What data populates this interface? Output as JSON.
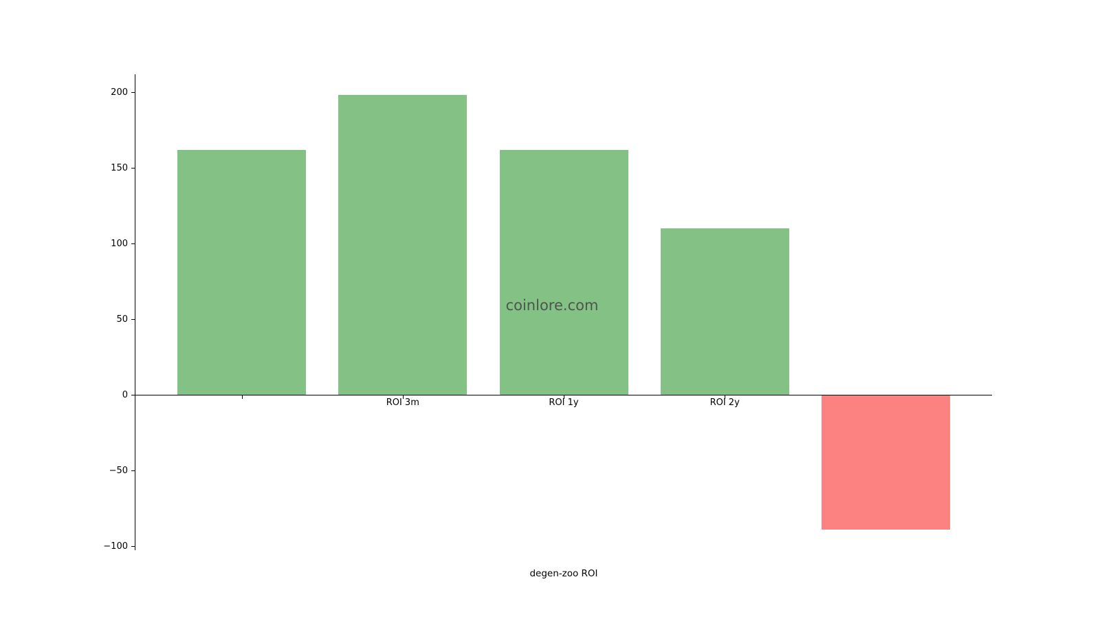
{
  "watermark_text": "coinlore.com",
  "chart_data": {
    "type": "bar",
    "title": "",
    "xlabel": "degen-zoo ROI",
    "ylabel": "",
    "categories": [
      "",
      "ROI 3m",
      "ROI 1y",
      "ROI 2y",
      ""
    ],
    "values": [
      162,
      198,
      162,
      110,
      -89
    ],
    "y_ticks": [
      200,
      150,
      100,
      50,
      0,
      -50,
      -100
    ],
    "ylim": [
      -102.5,
      212
    ],
    "grid": false,
    "legend": null,
    "colors": {
      "positive_bar": "#84c184",
      "negative_bar": "#fc8181",
      "axis": "#000000",
      "watermark": "#444444"
    }
  }
}
